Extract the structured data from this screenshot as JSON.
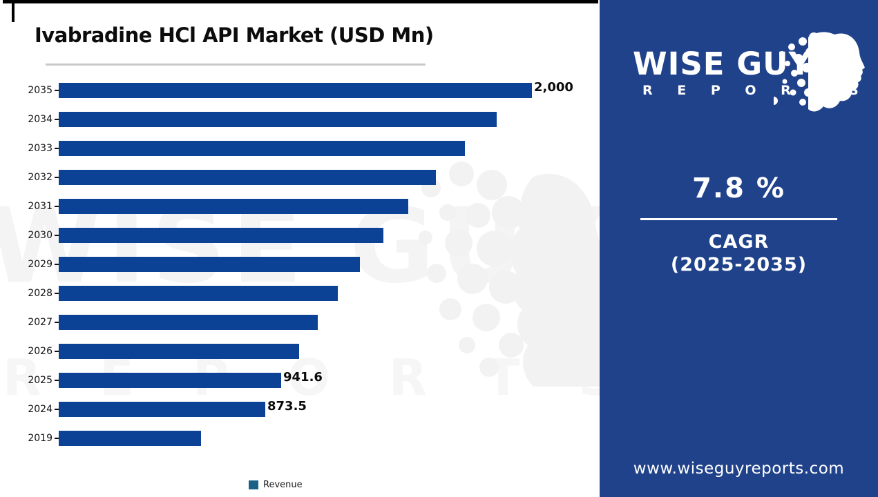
{
  "title": "Ivabradine HCl API Market (USD Mn)",
  "chart_data": {
    "type": "bar",
    "orientation": "horizontal",
    "title": "Ivabradine HCl API Market (USD Mn)",
    "categories": [
      "2035",
      "2034",
      "2033",
      "2032",
      "2031",
      "2030",
      "2029",
      "2028",
      "2027",
      "2026",
      "2025",
      "2024",
      "2019"
    ],
    "values": [
      2000,
      1851,
      1717,
      1594,
      1478,
      1371,
      1272,
      1180,
      1094,
      1015,
      941.6,
      873.5,
      600
    ],
    "data_labels": [
      "2,000",
      null,
      null,
      null,
      null,
      null,
      null,
      null,
      null,
      null,
      "941.6",
      "873.5",
      null
    ],
    "series_name": "Revenue",
    "xlim": [
      0,
      2000
    ],
    "grid": false,
    "legend_position": "bottom-center",
    "bar_color": "#0b4296",
    "legend_marker_color": "#1c6286"
  },
  "legend": {
    "revenue_label": "Revenue"
  },
  "watermark": {
    "line1": "WISE GUY",
    "line2": "R E P O R T S"
  },
  "sidebar": {
    "bg_color": "#20428a",
    "logo_line1": "WISE GUY",
    "logo_line2": "R E P O R T S",
    "cagr_value": "7.8 %",
    "cagr_label": "CAGR",
    "cagr_period": "(2025-2035)",
    "website": "www.wiseguyreports.com"
  }
}
